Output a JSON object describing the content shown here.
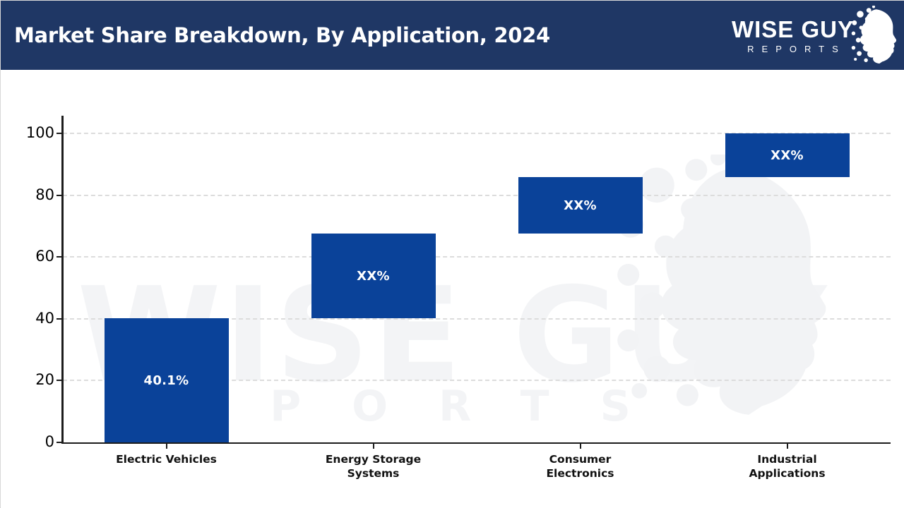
{
  "header": {
    "title": "Market Share Breakdown, By Application, 2024",
    "bg_color": "#1f3765",
    "logo": {
      "line1": "WISE GUY",
      "line2": "REPORTS",
      "icon": "dotted-face-profile"
    }
  },
  "watermark": {
    "line1": "WISE GUY",
    "line2": "REPORTS",
    "icon": "dotted-face-profile"
  },
  "chart_data": {
    "type": "bar",
    "variant": "waterfall",
    "title": "Market Share Breakdown, By Application, 2024",
    "categories": [
      "Electric Vehicles",
      "Energy Storage Systems",
      "Consumer Electronics",
      "Industrial Applications"
    ],
    "category_label_lines": [
      [
        "Electric Vehicles"
      ],
      [
        "Energy Storage",
        "Systems"
      ],
      [
        "Consumer",
        "Electronics"
      ],
      [
        "Industrial",
        "Applications"
      ]
    ],
    "segments": [
      {
        "category": "Electric Vehicles",
        "start": 0,
        "end": 40.1,
        "label": "40.1%"
      },
      {
        "category": "Energy Storage Systems",
        "start": 40.1,
        "end": 67.6,
        "label": "XX%"
      },
      {
        "category": "Consumer Electronics",
        "start": 67.6,
        "end": 85.8,
        "label": "XX%"
      },
      {
        "category": "Industrial Applications",
        "start": 85.8,
        "end": 100,
        "label": "XX%"
      }
    ],
    "ylim": [
      0,
      100
    ],
    "yticks": [
      0,
      20,
      40,
      60,
      80,
      100
    ],
    "xlabel": "",
    "ylabel": "",
    "legend": "none",
    "grid": {
      "axis": "y",
      "style": "dashed",
      "color": "#dcdcdc"
    },
    "bar_color": "#0a4299",
    "bar_label_color": "#ffffff",
    "axis_color": "#1c1c1c"
  }
}
